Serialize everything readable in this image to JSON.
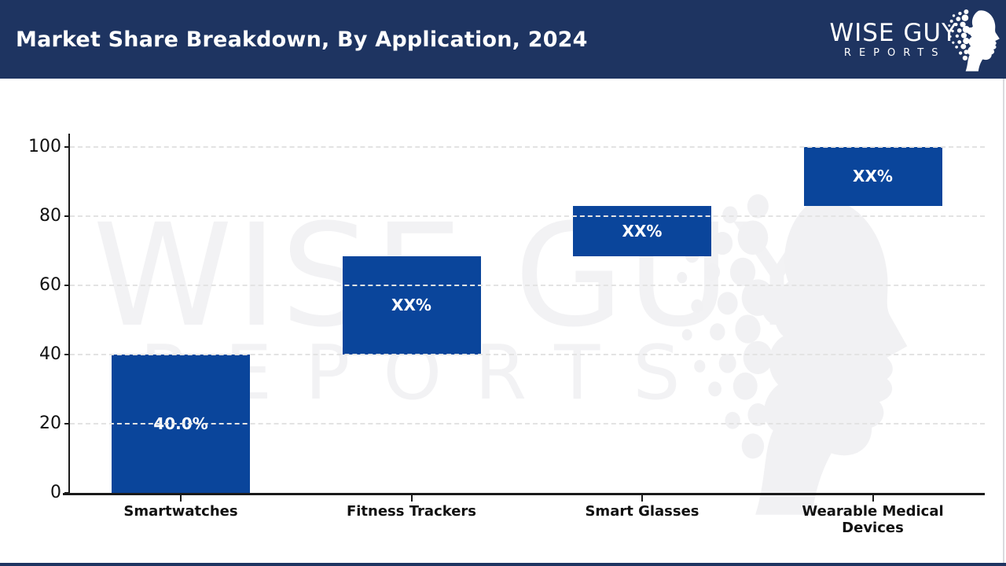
{
  "header": {
    "title": "Market Share Breakdown, By Application, 2024",
    "logo": {
      "line1": "WISE GUY",
      "line2": "REPORTS"
    }
  },
  "watermark": {
    "line1": "WISE GUY",
    "line2": "REPORTS"
  },
  "colors": {
    "header_navy": "#1e3461",
    "bar_blue": "#0a459b",
    "bar_label_white": "#ffffff",
    "gridline_gray": "#e3e3e3",
    "axis_dark": "#1a1a1a",
    "watermark_gray": "#f2f2f4"
  },
  "chart_data": {
    "type": "bar",
    "subtype": "floating-waterfall",
    "title": "Market Share Breakdown, By Application, 2024",
    "categories": [
      "Smartwatches",
      "Fitness Trackers",
      "Smart Glasses",
      "Wearable Medical Devices"
    ],
    "segments": [
      {
        "category": "Smartwatches",
        "start": 0,
        "end": 40,
        "label": "40.0%"
      },
      {
        "category": "Fitness Trackers",
        "start": 40,
        "end": 68.5,
        "label": "XX%"
      },
      {
        "category": "Smart Glasses",
        "start": 68.5,
        "end": 83,
        "label": "XX%"
      },
      {
        "category": "Wearable Medical Devices",
        "start": 83,
        "end": 100,
        "label": "XX%"
      }
    ],
    "y_ticks": [
      0,
      20,
      40,
      60,
      80,
      100
    ],
    "ylim": [
      0,
      100
    ],
    "xlabel": "",
    "ylabel": "",
    "grid": "horizontal-dashed",
    "legend": "none",
    "bar_color": "#0a459b",
    "bar_label_color": "#ffffff"
  }
}
